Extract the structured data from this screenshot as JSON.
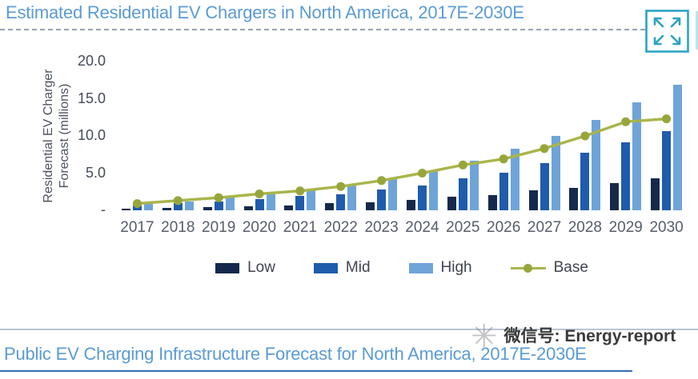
{
  "header": {
    "title": "Estimated Residential EV Chargers in North America, 2017E-2030E",
    "expand_icon": "expand-arrows-icon"
  },
  "chart_data": {
    "type": "bar",
    "title": "Estimated Residential EV Chargers in North America, 2017E-2030E",
    "ylabel_line1": "Residential EV Charger",
    "ylabel_line2": "Forecast (millions)",
    "xlabel": "",
    "ylim": [
      0,
      20
    ],
    "grid": false,
    "legend_position": "bottom",
    "y_ticks": [
      {
        "label": "20.0",
        "value": 20
      },
      {
        "label": "15.0",
        "value": 15
      },
      {
        "label": "10.0",
        "value": 10
      },
      {
        "label": "5.0",
        "value": 5
      },
      {
        "label": "-",
        "value": 0
      }
    ],
    "categories": [
      "2017",
      "2018",
      "2019",
      "2020",
      "2021",
      "2022",
      "2023",
      "2024",
      "2025",
      "2026",
      "2027",
      "2028",
      "2029",
      "2030"
    ],
    "series": [
      {
        "name": "Low",
        "type": "bar",
        "color": "#16294c",
        "values": [
          0.2,
          0.3,
          0.4,
          0.5,
          0.7,
          1.0,
          1.1,
          1.4,
          1.8,
          2.0,
          2.7,
          3.0,
          3.7,
          4.3
        ]
      },
      {
        "name": "Mid",
        "type": "bar",
        "color": "#1f5cab",
        "values": [
          0.6,
          1.0,
          1.2,
          1.5,
          1.9,
          2.2,
          2.8,
          3.3,
          4.3,
          5.1,
          6.3,
          7.7,
          9.1,
          10.7
        ]
      },
      {
        "name": "High",
        "type": "bar",
        "color": "#6fa4d8",
        "values": [
          0.9,
          1.2,
          1.7,
          2.2,
          2.8,
          3.3,
          4.3,
          5.3,
          6.7,
          8.3,
          10.0,
          12.2,
          14.5,
          16.9
        ]
      },
      {
        "name": "Base",
        "type": "line",
        "color": "#a9b54b",
        "marker_color": "#97a63c",
        "values": [
          0.9,
          1.3,
          1.7,
          2.2,
          2.6,
          3.2,
          4.0,
          5.0,
          6.1,
          6.9,
          8.3,
          10.0,
          11.9,
          12.3
        ]
      }
    ]
  },
  "footer": {
    "title": "Public EV Charging Infrastructure Forecast for North America, 2017E-2030E",
    "watermark": "微信号: Energy-report",
    "watermark_icon": "flower-logo-icon"
  },
  "colors": {
    "title_blue": "#5b9bd5",
    "axis_text": "#454b57",
    "expand_icon": "#2ba3c4",
    "divider": "#b9c6d4",
    "footer_underline": "#2f6fb0",
    "watermark_text": "#3b3b3b"
  }
}
